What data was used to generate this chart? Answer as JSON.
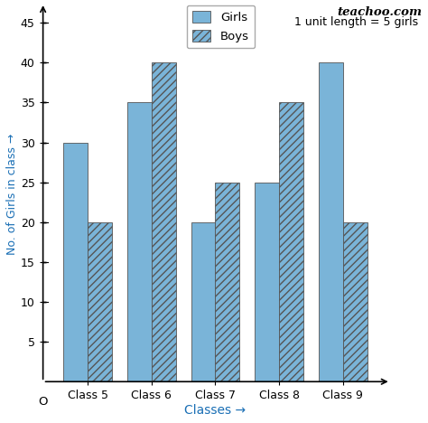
{
  "categories": [
    "Class 5",
    "Class 6",
    "Class 7",
    "Class 8",
    "Class 9"
  ],
  "girls_values": [
    30,
    35,
    20,
    25,
    40
  ],
  "boys_values": [
    20,
    40,
    25,
    35,
    20
  ],
  "bar_color_girls": "#7ab4d8",
  "bar_color_boys": "#7ab4d8",
  "bar_hatch_boys": "////",
  "xlabel": "Classes →",
  "ylabel": "No. of Girls in class →",
  "ylim": [
    0,
    47
  ],
  "yticks": [
    5,
    10,
    15,
    20,
    25,
    30,
    35,
    40,
    45
  ],
  "xlabel_color": "#1a6fb5",
  "ylabel_color": "#1a6fb5",
  "annotation": "1 unit length = 5 girls",
  "watermark": "teachoo.com",
  "legend_girls": "Girls",
  "legend_boys": "Boys",
  "bar_width": 0.38,
  "background_color": "#ffffff",
  "origin_label": "O"
}
